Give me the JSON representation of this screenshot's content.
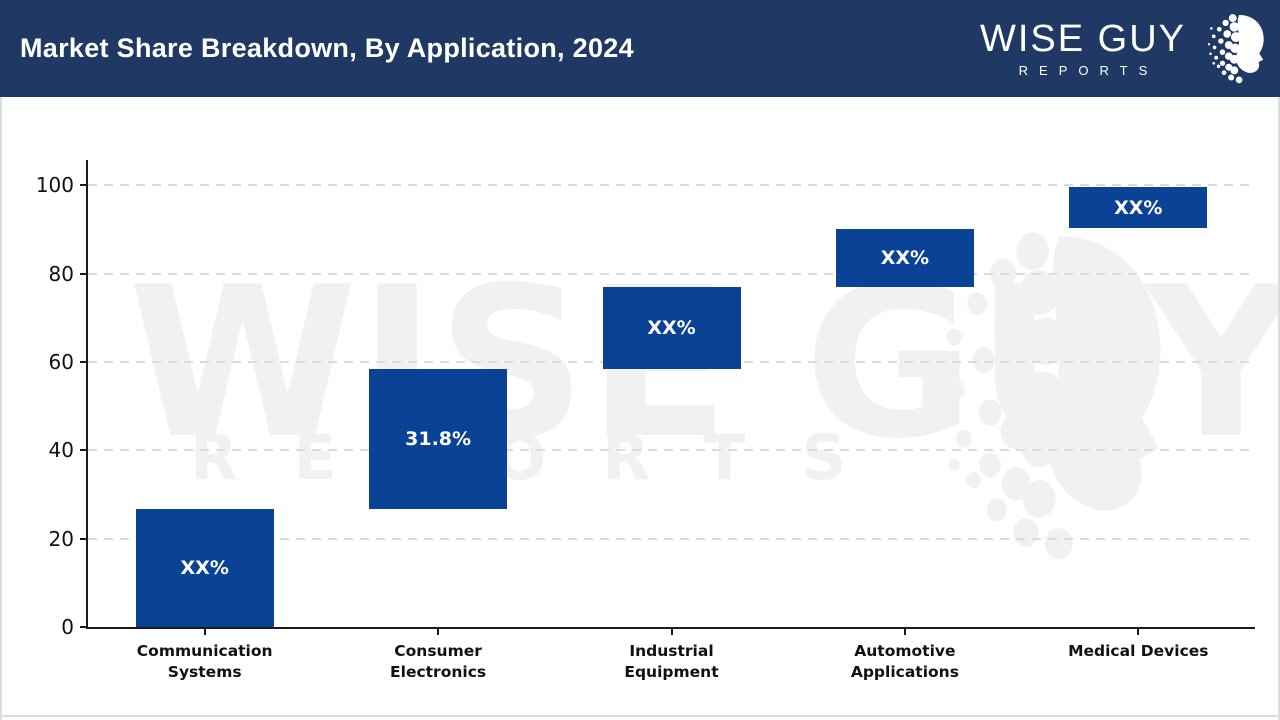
{
  "header": {
    "title": "Market Share Breakdown, By Application, 2024",
    "background": "#203864",
    "logo": {
      "line1": "WISE GUY",
      "line2": "REPORTS"
    }
  },
  "watermark": {
    "line1": "WISE GUY",
    "line2": "REPORTS",
    "color": "#f1f1f1"
  },
  "chart_data": {
    "type": "bar",
    "subtype": "waterfall",
    "title": "Market Share Breakdown, By Application, 2024",
    "xlabel": "",
    "ylabel": "",
    "categories": [
      [
        "Communication",
        "Systems"
      ],
      [
        "Consumer",
        "Electronics"
      ],
      [
        "Industrial",
        "Equipment"
      ],
      [
        "Automotive",
        "Applications"
      ],
      [
        "Medical Devices"
      ]
    ],
    "segments": [
      {
        "category": "Communication Systems",
        "start": 0,
        "end": 26.7,
        "value": 26.7,
        "label": "XX%"
      },
      {
        "category": "Consumer Electronics",
        "start": 26.7,
        "end": 58.5,
        "value": 31.8,
        "label": "31.8%"
      },
      {
        "category": "Industrial Equipment",
        "start": 58.5,
        "end": 77.0,
        "value": 18.5,
        "label": "XX%"
      },
      {
        "category": "Automotive Applications",
        "start": 77.0,
        "end": 90.2,
        "value": 13.2,
        "label": "XX%"
      },
      {
        "category": "Medical Devices",
        "start": 90.2,
        "end": 99.5,
        "value": 9.3,
        "label": "XX%"
      }
    ],
    "yticks": [
      0,
      20,
      40,
      60,
      80,
      100
    ],
    "ylim": [
      0,
      105.7
    ],
    "grid": "dashed-horizontal",
    "legend": "none",
    "colors": {
      "bar": "#0a4296",
      "bar_label": "#ffffff",
      "grid": "#dbdbdb",
      "axis": "#1a1a1a",
      "tick_text": "#111111"
    }
  }
}
